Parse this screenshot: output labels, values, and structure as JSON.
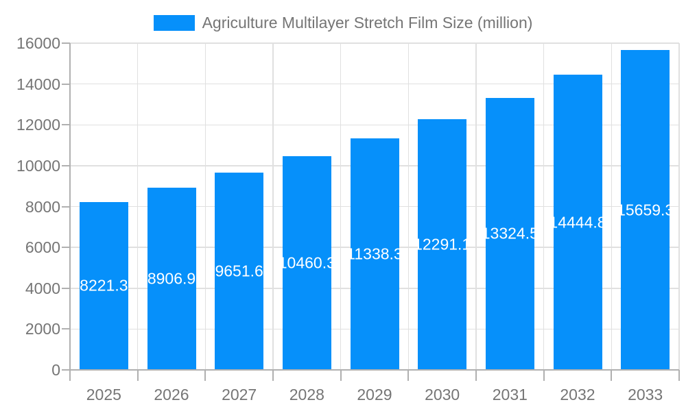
{
  "chart_data": {
    "type": "bar",
    "title": "Agriculture Multilayer Stretch Film Size (million)",
    "legend_entries": [
      {
        "label": "Agriculture Multilayer Stretch Film Size (million)",
        "color": "#0690fa"
      }
    ],
    "legend_position": "top",
    "categories": [
      "2025",
      "2026",
      "2027",
      "2028",
      "2029",
      "2030",
      "2031",
      "2032",
      "2033"
    ],
    "values": [
      8221.3,
      8906.9,
      9651.6,
      10460.3,
      11338.3,
      12291.1,
      13324.5,
      14444.8,
      15659.3
    ],
    "bar_value_labels": [
      "8221.3",
      "8906.9",
      "9651.6",
      "10460.3",
      "11338.3",
      "12291.1",
      "13324.5",
      "14444.8",
      "15659.3"
    ],
    "xlabel": "",
    "ylabel": "",
    "ylim": [
      0,
      16000
    ],
    "yticks": [
      0,
      2000,
      4000,
      6000,
      8000,
      10000,
      12000,
      14000,
      16000
    ],
    "grid": true,
    "colors": {
      "bar": "#0690fa",
      "bar_label": "#ffffff",
      "axis_text": "#757575",
      "axis_line": "#b0b0b0",
      "gridline": "#e0e0e0",
      "background": "#ffffff"
    }
  }
}
